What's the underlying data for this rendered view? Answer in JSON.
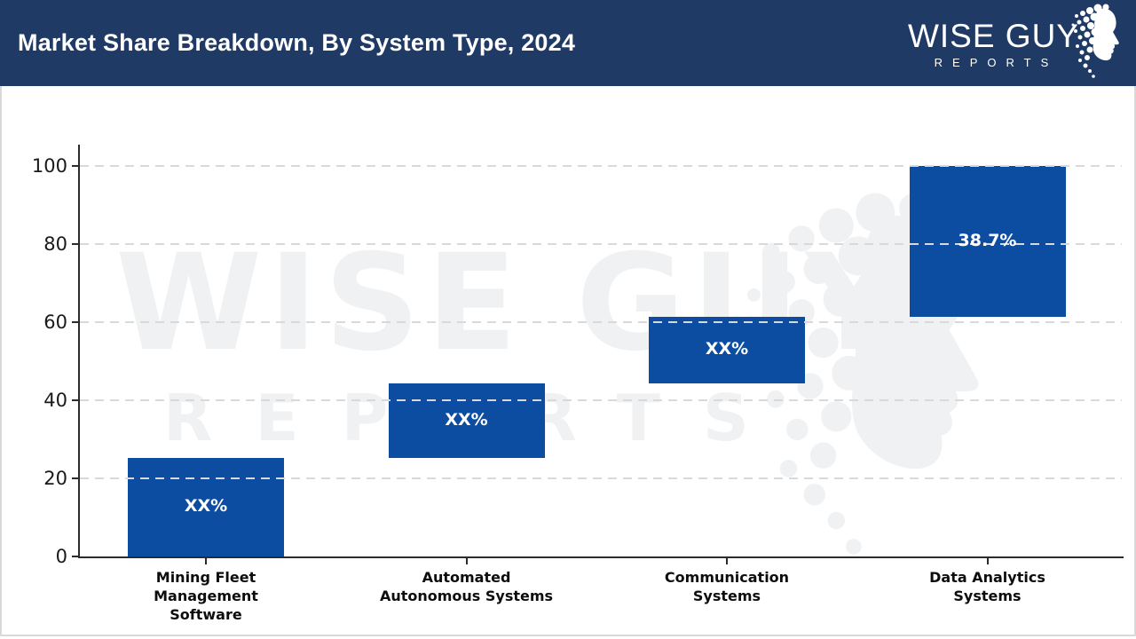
{
  "header": {
    "title": "Market Share Breakdown, By System Type, 2024",
    "logo": {
      "name": "WISE GUY",
      "sub": "REPORTS"
    }
  },
  "watermark": {
    "line1": "WISE GUY",
    "line2": "REPORTS"
  },
  "chart_data": {
    "type": "bar",
    "subtype": "waterfall",
    "title": "Market Share Breakdown, By System Type, 2024",
    "categories": [
      "Mining Fleet\nManagement\nSoftware",
      "Automated\nAutonomous Systems",
      "Communication\nSystems",
      "Data Analytics\nSystems"
    ],
    "segments": [
      {
        "category": "Mining Fleet Management Software",
        "start": 0,
        "end": 25.3,
        "label": "XX%"
      },
      {
        "category": "Automated Autonomous Systems",
        "start": 25.3,
        "end": 44.4,
        "label": "XX%"
      },
      {
        "category": "Communication Systems",
        "start": 44.4,
        "end": 61.3,
        "label": "XX%"
      },
      {
        "category": "Data Analytics Systems",
        "start": 61.3,
        "end": 100,
        "label": "38.7%"
      }
    ],
    "ylim": [
      0,
      100
    ],
    "yticks": [
      0,
      20,
      40,
      60,
      80,
      100
    ],
    "xlabel": "",
    "ylabel": "",
    "grid": "horizontal dashed, drawn over bars",
    "legend": "none",
    "bar_color": "#0c4da2",
    "bar_label_color": "#ffffff"
  },
  "colors": {
    "header_bg": "#203a66",
    "bar": "#0c4da2",
    "grid": "#d9d9d9",
    "axis": "#2b2b2b",
    "watermark": "#f0f1f3",
    "card_border": "#d9d9d9",
    "text": "#0d0d0d"
  }
}
